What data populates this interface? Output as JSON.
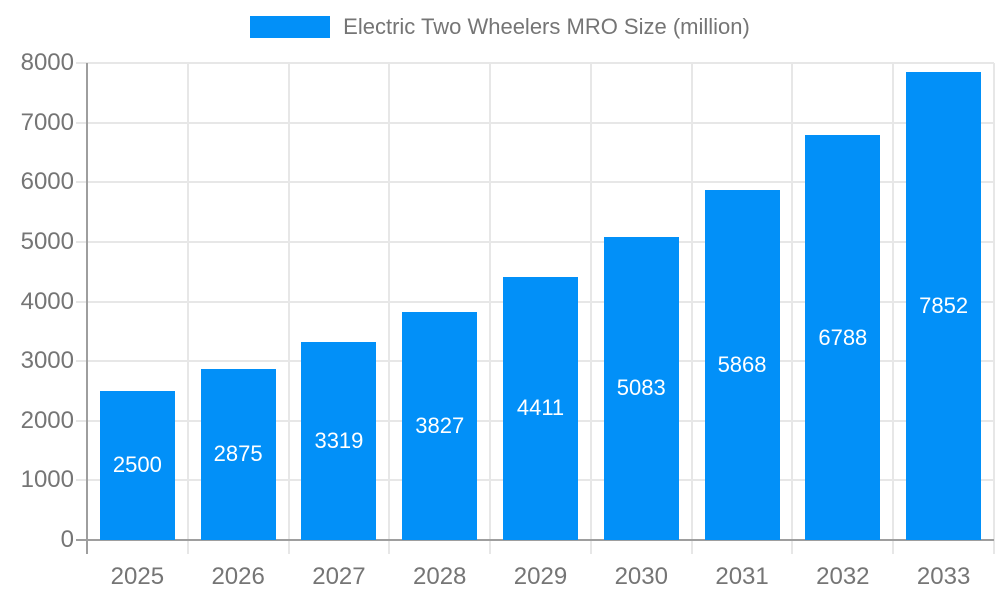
{
  "legend": {
    "label": "Electric Two Wheelers MRO Size (million)"
  },
  "colors": {
    "bar": "#0290f8",
    "grid": "#e7e7e7",
    "axis": "#9e9e9e",
    "text": "#757575",
    "value_label": "#ffffff",
    "background": "#ffffff"
  },
  "chart_data": {
    "type": "bar",
    "title": "Electric Two Wheelers MRO Size (million)",
    "categories": [
      "2025",
      "2026",
      "2027",
      "2028",
      "2029",
      "2030",
      "2031",
      "2032",
      "2033"
    ],
    "values": [
      2500,
      2875,
      3319,
      3827,
      4411,
      5083,
      5868,
      6788,
      7852
    ],
    "series": [
      {
        "name": "Electric Two Wheelers MRO Size (million)",
        "values": [
          2500,
          2875,
          3319,
          3827,
          4411,
          5083,
          5868,
          6788,
          7852
        ]
      }
    ],
    "xlabel": "",
    "ylabel": "",
    "ylim": [
      0,
      8000
    ],
    "ytick_step": 1000,
    "ytick_labels": [
      "0",
      "1000",
      "2000",
      "3000",
      "4000",
      "5000",
      "6000",
      "7000",
      "8000"
    ],
    "grid": true,
    "legend_position": "top",
    "value_labels": "inside-center"
  }
}
